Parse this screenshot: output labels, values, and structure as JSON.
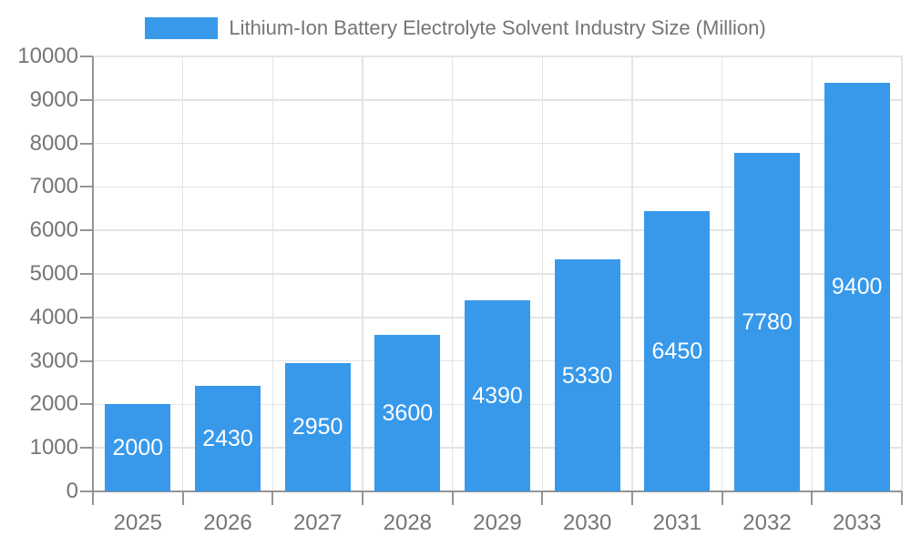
{
  "chart_data": {
    "type": "bar",
    "title": "Lithium-Ion Battery Electrolyte Solvent Industry Size (Million)",
    "categories": [
      "2025",
      "2026",
      "2027",
      "2028",
      "2029",
      "2030",
      "2031",
      "2032",
      "2033"
    ],
    "values": [
      2000,
      2430,
      2950,
      3600,
      4390,
      5330,
      6450,
      7780,
      9400
    ],
    "xlabel": "",
    "ylabel": "",
    "ylim": [
      0,
      10000
    ],
    "ytick_step": 1000,
    "y_tick_labels": [
      "0",
      "1000",
      "2000",
      "3000",
      "4000",
      "5000",
      "6000",
      "7000",
      "8000",
      "9000",
      "10000"
    ],
    "value_labels_inside_bars": true,
    "legend": {
      "position": "top-center",
      "label": "Lithium-Ion Battery Electrolyte Solvent Industry Size (Million)"
    },
    "grid": {
      "horizontal": true,
      "vertical": true
    },
    "colors": {
      "bar": "#3899EB",
      "bar_label": "#FFFFFF",
      "tick_label": "#757575",
      "title": "#757575",
      "grid": "#E4E4E4",
      "axis": "#949494"
    }
  }
}
